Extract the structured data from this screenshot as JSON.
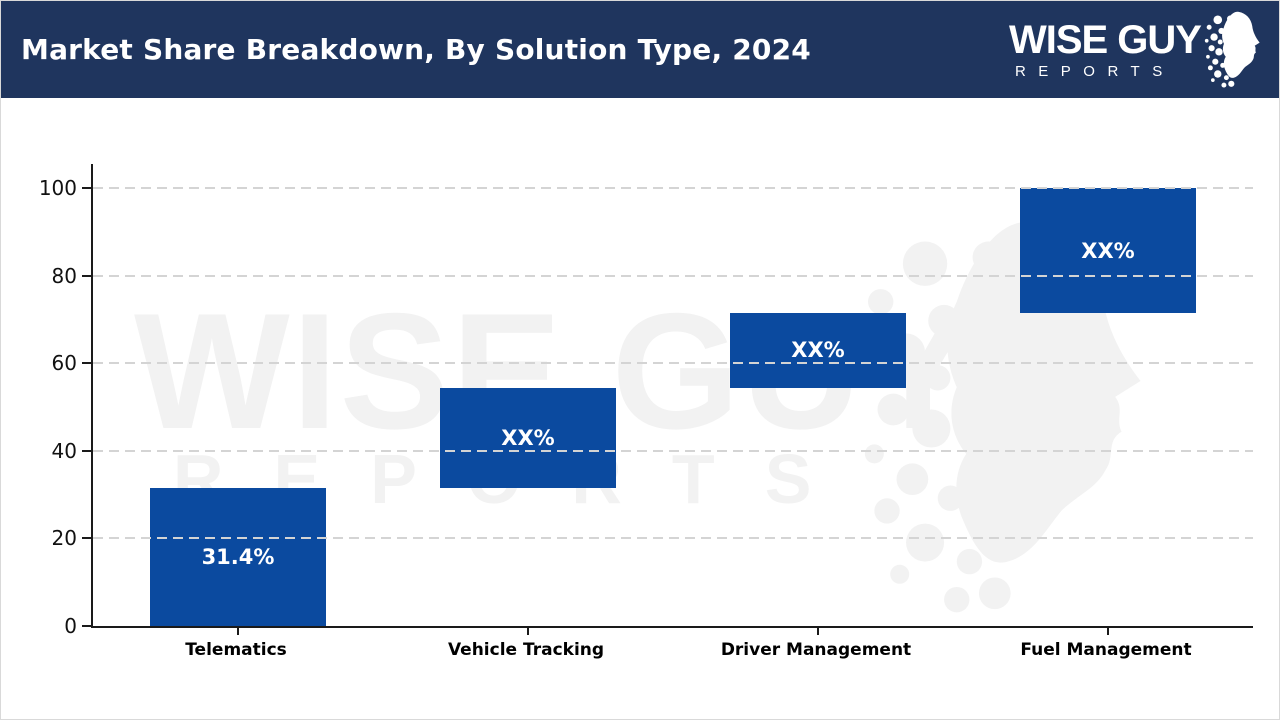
{
  "header": {
    "title": "Market Share Breakdown, By Solution Type, 2024",
    "logo": {
      "wordmark": "WISE GUY",
      "subtitle": "REPORTS"
    }
  },
  "watermark": {
    "wordmark": "WISE GUY",
    "subtitle": "REPORTS"
  },
  "chart_data": {
    "type": "bar",
    "subtype": "waterfall",
    "title": "Market Share Breakdown, By Solution Type, 2024",
    "categories": [
      "Telematics",
      "Vehicle Tracking",
      "Driver Management",
      "Fuel Management"
    ],
    "series": [
      {
        "name": "Market share (%)",
        "segments": [
          {
            "category": "Telematics",
            "start": 0,
            "end": 31.4,
            "label": "31.4%"
          },
          {
            "category": "Vehicle Tracking",
            "start": 31.4,
            "end": 54.4,
            "label": "XX%"
          },
          {
            "category": "Driver Management",
            "start": 54.4,
            "end": 71.4,
            "label": "XX%"
          },
          {
            "category": "Fuel Management",
            "start": 71.4,
            "end": 100,
            "label": "XX%"
          }
        ]
      }
    ],
    "xlabel": "",
    "ylabel": "",
    "ylim": [
      0,
      100
    ],
    "yticks": [
      0,
      20,
      40,
      60,
      80,
      100
    ],
    "grid": true,
    "grid_style": "dashed",
    "legend": false,
    "colors": {
      "bar": "#0b4a9f",
      "bar_label": "#ffffff",
      "axis": "#1a1a1a",
      "grid": "#d4d4d4",
      "header_bg": "#1f355e",
      "header_text": "#ffffff",
      "watermark": "#f2f2f2"
    }
  }
}
